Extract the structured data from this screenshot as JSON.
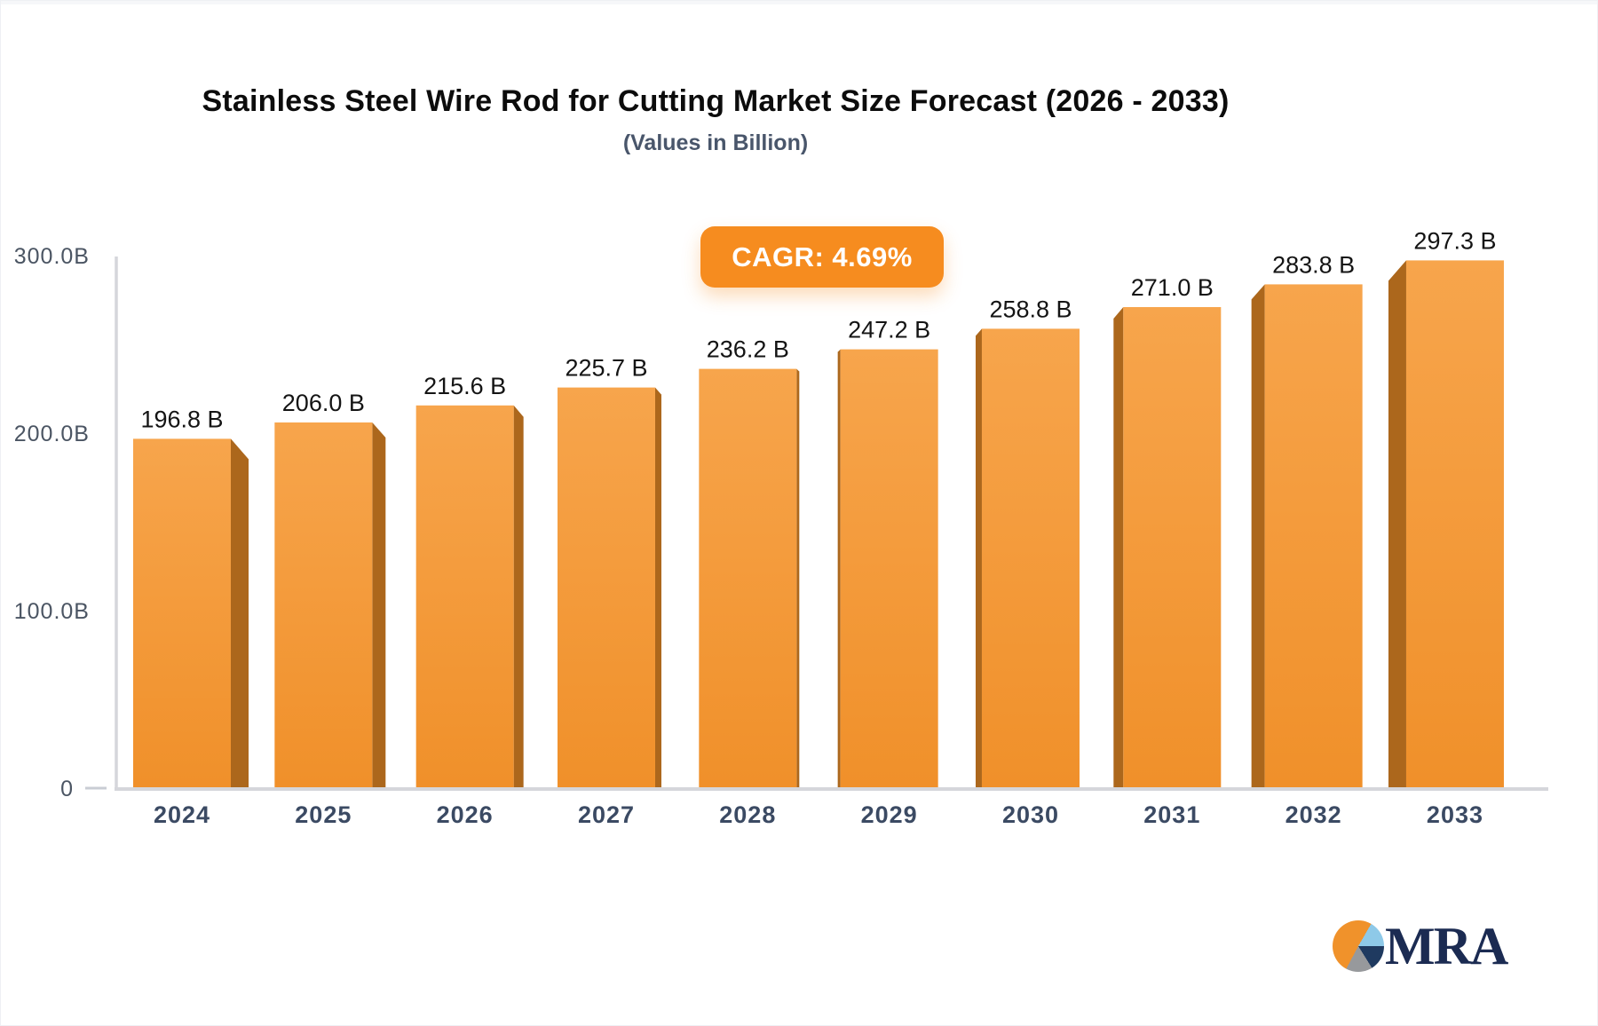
{
  "header": {
    "title": "Stainless Steel Wire Rod for Cutting Market Size Forecast (2026 - 2033)",
    "subtitle": "(Values in Billion)"
  },
  "logo": {
    "text": "MRA"
  },
  "chart_data": {
    "type": "bar",
    "title": "Stainless Steel Wire Rod for Cutting Market Size Forecast (2026 - 2033)",
    "subtitle": "(Values in Billion)",
    "categories": [
      "2024",
      "2025",
      "2026",
      "2027",
      "2028",
      "2029",
      "2030",
      "2031",
      "2032",
      "2033"
    ],
    "values": [
      196.8,
      206.0,
      215.6,
      225.7,
      236.2,
      247.2,
      258.8,
      271.0,
      283.8,
      297.3
    ],
    "value_labels": [
      "196.8 B",
      "206.0 B",
      "215.6 B",
      "225.7 B",
      "236.2 B",
      "247.2 B",
      "258.8 B",
      "271.0 B",
      "283.8 B",
      "297.3 B"
    ],
    "annotation": {
      "text": "CAGR: 4.69%"
    },
    "xlabel": "",
    "ylabel": "",
    "ylim": [
      0,
      300
    ],
    "grid": false,
    "legend": "none",
    "yticks": [
      {
        "value": 0,
        "label": "0"
      },
      {
        "value": 100,
        "label": "100.0B"
      },
      {
        "value": 200,
        "label": "200.0B"
      },
      {
        "value": 300,
        "label": "300.0B"
      }
    ],
    "colors": {
      "bar_face_top": "#F7A54C",
      "bar_face_bottom": "#F0902A",
      "bar_side": "#AC671C",
      "axis": "#D5D6DB",
      "tick_text": "#4B5563",
      "category_text": "#3B4A63",
      "value_text": "#141414",
      "badge_bg": "#F68C1F",
      "badge_text": "#FFFFFF"
    }
  }
}
